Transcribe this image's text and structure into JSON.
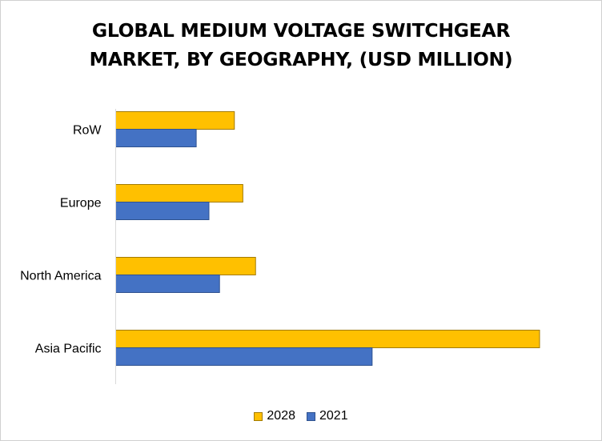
{
  "chart_data": {
    "type": "bar",
    "orientation": "horizontal",
    "title": "GLOBAL MEDIUM VOLTAGE SWITCHGEAR MARKET, BY GEOGRAPHY, (USD MILLION)",
    "title_lines": [
      "GLOBAL MEDIUM VOLTAGE SWITCHGEAR",
      "MARKET, BY GEOGRAPHY, (USD MILLION)"
    ],
    "categories": [
      "RoW",
      "Europe",
      "North America",
      "Asia Pacific"
    ],
    "series": [
      {
        "name": "2028",
        "values": [
          28,
          30,
          33,
          100
        ],
        "color": "#FFC000",
        "stroke": "#A37B00"
      },
      {
        "name": "2021",
        "values": [
          19,
          22,
          24.5,
          60.5
        ],
        "color": "#4472C4",
        "stroke": "#2F528F"
      }
    ],
    "xlim": [
      0,
      100
    ],
    "grid": false,
    "axis_labels_shown": false,
    "legend_position": "bottom"
  }
}
